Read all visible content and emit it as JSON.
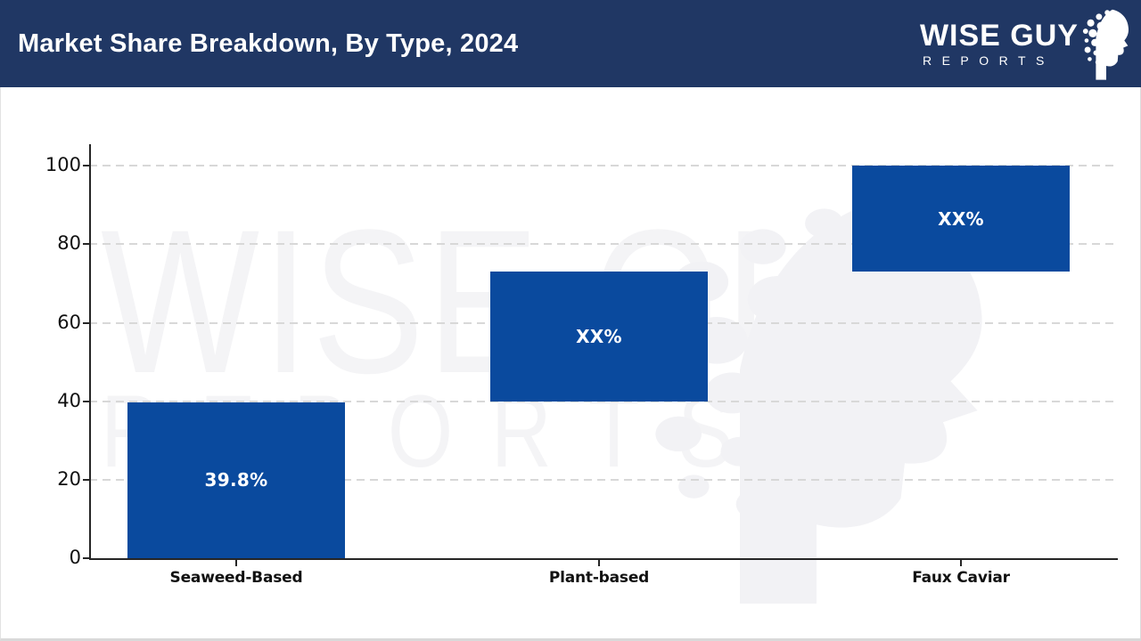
{
  "header": {
    "title": "Market Share Breakdown, By Type, 2024",
    "bg_color": "#203764",
    "logo": {
      "wordmark": "WISE GUY",
      "reports": "REPORTS"
    }
  },
  "watermark": {
    "line1": "WISE GUY",
    "line2": "REPORTS"
  },
  "chart_data": {
    "type": "bar",
    "variant": "waterfall-stacked-percentage",
    "title": "Market Share Breakdown, By Type, 2024",
    "categories": [
      "Seaweed-Based",
      "Plant-based",
      "Faux Caviar"
    ],
    "bars": [
      {
        "category": "Seaweed-Based",
        "start": 0,
        "end": 39.8,
        "label": "39.8%"
      },
      {
        "category": "Plant-based",
        "start": 40,
        "end": 73,
        "label": "XX%"
      },
      {
        "category": "Faux Caviar",
        "start": 73,
        "end": 100,
        "label": "XX%"
      }
    ],
    "xlabel": "",
    "ylabel": "",
    "ylim": [
      0,
      100
    ],
    "yticks": [
      0,
      20,
      40,
      60,
      80,
      100
    ],
    "grid": "horizontal-dashed",
    "legend": "none",
    "bar_color": "#0a4a9e",
    "bar_label_color": "#ffffff",
    "axis_color": "#262626",
    "gridline_color": "#d8d8d8"
  }
}
